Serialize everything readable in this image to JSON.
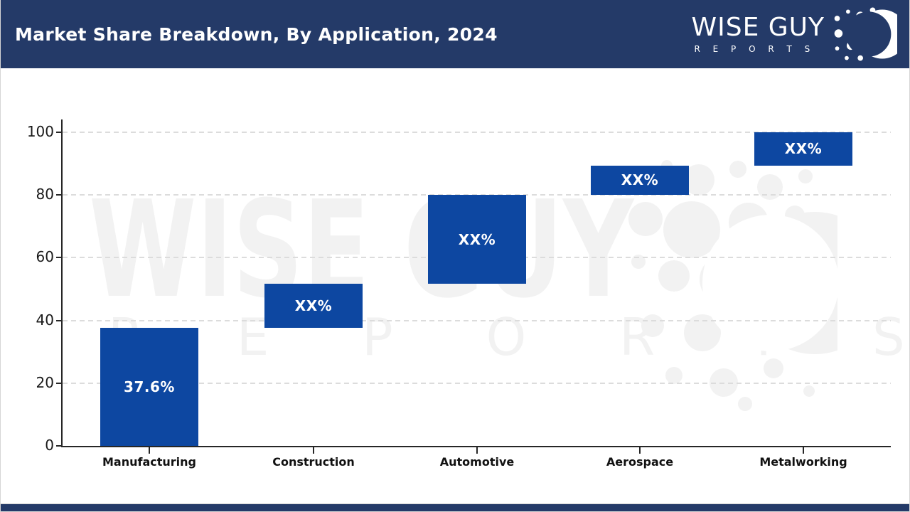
{
  "header": {
    "title": "Market Share Breakdown, By Application, 2024",
    "logo": {
      "line1": "WISE GUY",
      "line2": "R E P O R T S"
    }
  },
  "watermark": {
    "line1": "WISE GUY",
    "line2": "R E P O R T S"
  },
  "chart_data": {
    "type": "bar",
    "subtype": "waterfall",
    "title": "Market Share Breakdown, By Application, 2024",
    "categories": [
      "Manufacturing",
      "Construction",
      "Automotive",
      "Aerospace",
      "Metalworking"
    ],
    "segments": [
      {
        "category": "Manufacturing",
        "start": 0,
        "end": 37.6,
        "label": "37.6%"
      },
      {
        "category": "Construction",
        "start": 37.6,
        "end": 51.6,
        "label": "XX%"
      },
      {
        "category": "Automotive",
        "start": 51.6,
        "end": 80,
        "label": "XX%"
      },
      {
        "category": "Aerospace",
        "start": 80,
        "end": 89.4,
        "label": "XX%"
      },
      {
        "category": "Metalworking",
        "start": 89.4,
        "end": 100,
        "label": "XX%"
      }
    ],
    "xlabel": "",
    "ylabel": "",
    "yticks": [
      0,
      20,
      40,
      60,
      80,
      100
    ],
    "ylim": [
      0,
      105
    ],
    "grid": "horizontal dashed",
    "legend": null,
    "bar_color": "#0d47a1"
  },
  "colors": {
    "header_bg": "#243a68",
    "footer_bg": "#243a68",
    "bar": "#0d47a1",
    "grid": "#dcdcdc",
    "axis": "#262626",
    "tick_label": "#1a1a1a",
    "bar_label": "#ffffff",
    "watermark": "#f2f2f2",
    "page_border": "#d6d6d6"
  }
}
